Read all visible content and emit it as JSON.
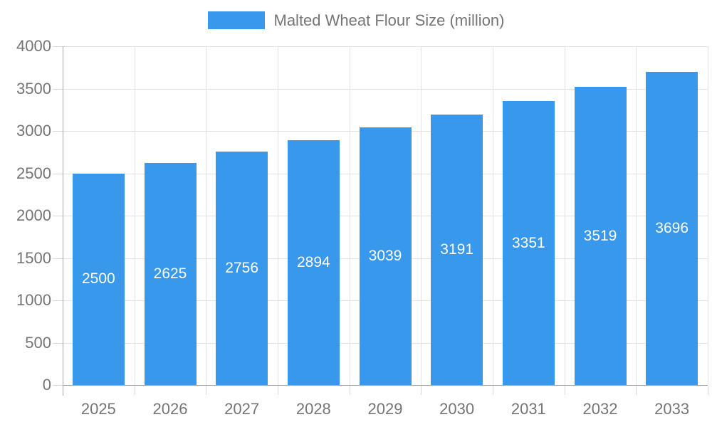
{
  "chart_data": {
    "type": "bar",
    "title": "",
    "series_name": "Malted Wheat Flour Size (million)",
    "categories": [
      "2025",
      "2026",
      "2027",
      "2028",
      "2029",
      "2030",
      "2031",
      "2032",
      "2033"
    ],
    "values": [
      2500,
      2625,
      2756,
      2894,
      3039,
      3191,
      3351,
      3519,
      3696
    ],
    "ylim": [
      0,
      4000
    ],
    "ytick_step": 500,
    "ytick_labels": [
      "0",
      "500",
      "1000",
      "1500",
      "2000",
      "2500",
      "3000",
      "3500",
      "4000"
    ],
    "grid": true,
    "legend_position": "top",
    "value_label_position": "inside-center",
    "colors": {
      "bar": "#3899EC",
      "axis": "#a6a6a6",
      "grid": "#e3e3e3",
      "tick": "#d9d9d9",
      "label": "#757575",
      "value_text": "#ffffff",
      "background": "#ffffff"
    }
  }
}
